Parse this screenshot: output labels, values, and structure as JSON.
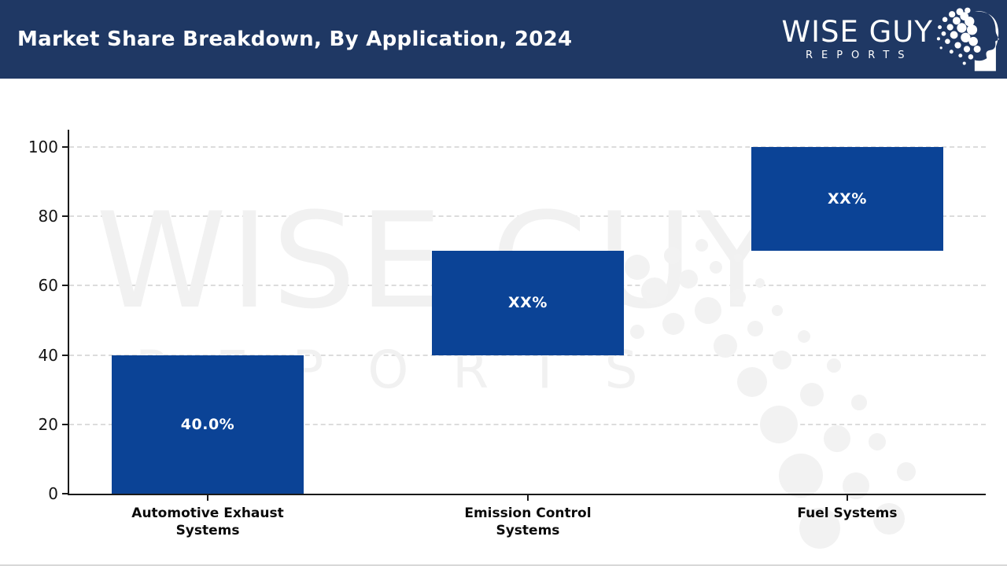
{
  "header": {
    "logo": {
      "line1": "WISE GUY",
      "line2": "REPORTS"
    }
  },
  "watermark": {
    "line1": "WISE GUY",
    "line2": "REPORTS"
  },
  "colors": {
    "header_bg": "#1F3864",
    "bar": "#0B4396",
    "grid": "#DCDCDC",
    "axis": "#1a1a1a",
    "watermark": "#F1F1F1",
    "bar_label_text": "#FFFFFF"
  },
  "icons": {
    "logo_face": "dotted-face-profile-icon"
  },
  "chart_data": {
    "type": "bar",
    "subtype": "floating-waterfall",
    "title": "Market Share Breakdown, By Application, 2024",
    "categories": [
      "Automotive Exhaust\nSystems",
      "Emission Control\nSystems",
      "Fuel Systems"
    ],
    "series": [
      {
        "name": "Market Share",
        "values": [
          40,
          30,
          30
        ],
        "ranges": [
          [
            0,
            40
          ],
          [
            40,
            70
          ],
          [
            70,
            100
          ]
        ]
      }
    ],
    "bar_labels": [
      "40.0%",
      "XX%",
      "XX%"
    ],
    "xlabel": "",
    "ylabel": "",
    "ylim": [
      0,
      100
    ],
    "yticks": [
      0,
      20,
      40,
      60,
      80,
      100
    ],
    "grid": "horizontal-dashed",
    "legend": "none"
  }
}
